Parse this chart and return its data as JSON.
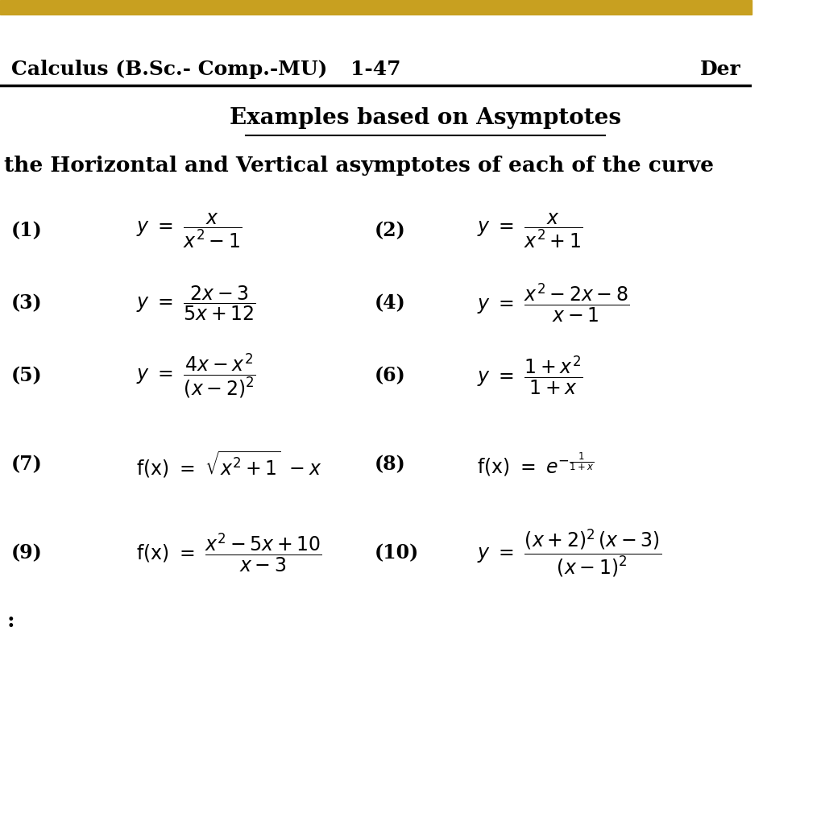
{
  "bg_color": "#ffffff",
  "header_line_color": "#000000",
  "header_text_left": "Calculus (B.Sc.- Comp.-MU)",
  "header_text_center": "1-47",
  "header_text_right": "Der",
  "section_title": "Examples based on Asymptotes",
  "subtitle": "the Horizontal and Vertical asymptotes of each of the curve",
  "top_strip_color": "#c8a020",
  "items": [
    {
      "num": "(1)",
      "expr": "y = \\dfrac{x}{x^2 - 1}",
      "col": 0
    },
    {
      "num": "(2)",
      "expr": "y = \\dfrac{x}{x^2 + 1}",
      "col": 1
    },
    {
      "num": "(3)",
      "expr": "y = \\dfrac{2x - 3}{5x + 12}",
      "col": 0
    },
    {
      "num": "(4)",
      "expr": "y = \\dfrac{x^2 - 2x - 8}{x - 1}",
      "col": 1
    },
    {
      "num": "(5)",
      "expr": "y = \\dfrac{4x - x^2}{(x-2)^2}",
      "col": 0
    },
    {
      "num": "(6)",
      "expr": "y = \\dfrac{1 + x^2}{1 + x}",
      "col": 1
    },
    {
      "num": "(7)",
      "expr": "f(x) = \\sqrt{x^2 + 1} - x",
      "col": 0
    },
    {
      "num": "(8)",
      "expr": "f(x) = e^{-\\frac{1}{1+x}}",
      "col": 1
    },
    {
      "num": "(9)",
      "expr": "f(x) = \\dfrac{x^2 - 5x + 10}{x - 3}",
      "col": 0
    },
    {
      "num": "(10)",
      "expr": "y = \\dfrac{(x+2)^2 (x-3)}{(x-1)^2}",
      "col": 1
    }
  ],
  "font_size_header": 18,
  "font_size_title": 20,
  "font_size_subtitle": 19,
  "font_size_items": 17
}
